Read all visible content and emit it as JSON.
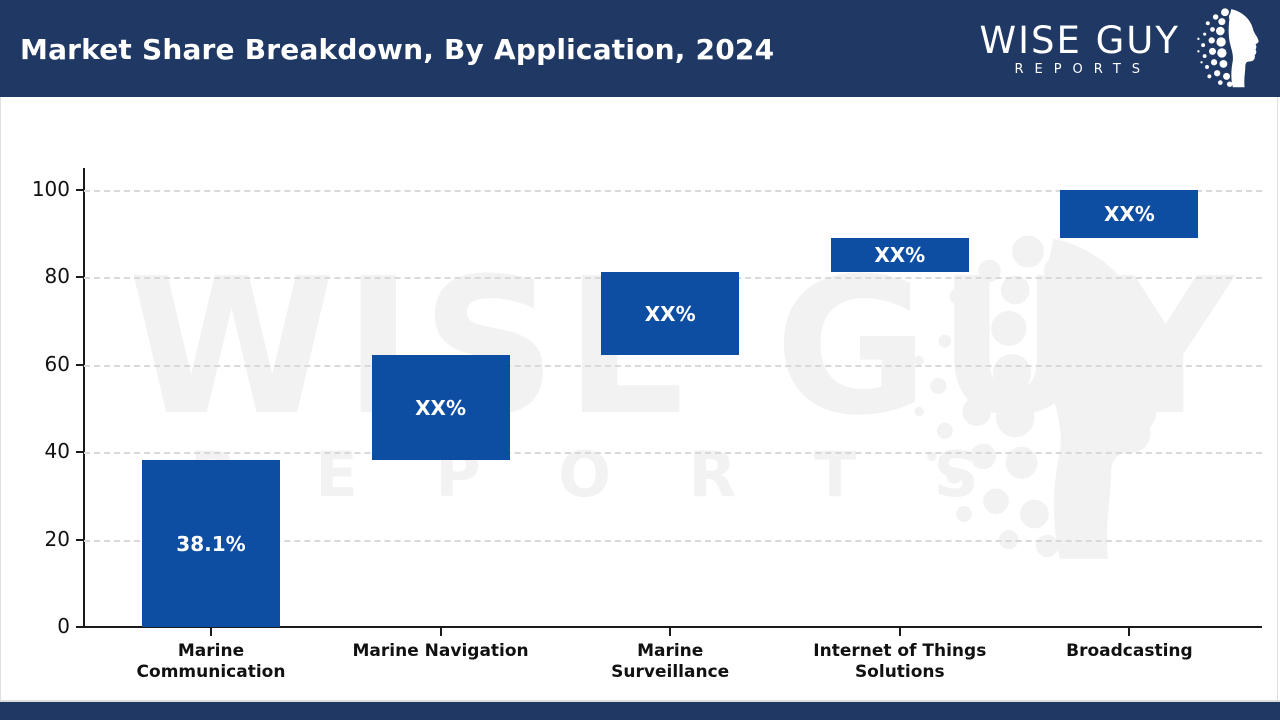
{
  "header": {
    "title": "Market Share Breakdown, By Application, 2024",
    "logo": {
      "line1": "WISE GUY",
      "line2": "REPORTS"
    }
  },
  "watermark": {
    "line1": "WISE GUY",
    "line2": "R E P O R T S"
  },
  "colors": {
    "brand_navy": "#1f3864",
    "bar_blue": "#0d4da2",
    "axis": "#1a1a1a",
    "grid": "#d9d9d9",
    "text": "#111111",
    "watermark": "#f2f2f2"
  },
  "chart_data": {
    "type": "bar",
    "subtype": "waterfall",
    "title": "Market Share Breakdown, By Application, 2024",
    "xlabel": "",
    "ylabel": "",
    "categories": [
      "Marine\nCommunication",
      "Marine Navigation",
      "Marine\nSurveillance",
      "Internet of Things\nSolutions",
      "Broadcasting"
    ],
    "segments": [
      {
        "start": 0,
        "end": 38.1,
        "label": "38.1%"
      },
      {
        "start": 38.1,
        "end": 62.2,
        "label": "XX%"
      },
      {
        "start": 62.2,
        "end": 81.1,
        "label": "XX%"
      },
      {
        "start": 81.1,
        "end": 88.9,
        "label": "XX%"
      },
      {
        "start": 88.9,
        "end": 100,
        "label": "XX%"
      }
    ],
    "yticks": [
      0,
      20,
      40,
      60,
      80,
      100
    ],
    "ylim": [
      0,
      105
    ],
    "grid": "horizontal-dashed",
    "legend": "none",
    "bar_color": "#0d4da2"
  }
}
